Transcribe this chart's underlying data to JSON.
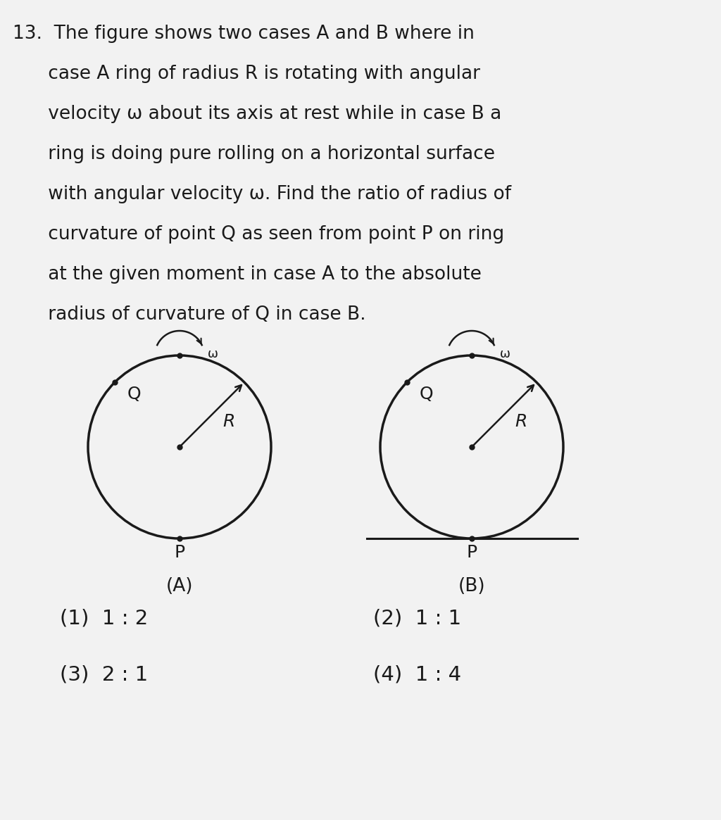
{
  "bg_color": "#f2f2f2",
  "text_color": "#1a1a1a",
  "question_lines": [
    "13.  The figure shows two cases A and B where in",
    "      case A ring of radius R is rotating with angular",
    "      velocity ω about its axis at rest while in case B a",
    "      ring is doing pure rolling on a horizontal surface",
    "      with angular velocity ω. Find the ratio of radius of",
    "      curvature of point Q as seen from point P on ring",
    "      at the given moment in case A to the absolute",
    "      radius of curvature of Q in case B."
  ],
  "options_col1": [
    "(1)  1 : 2",
    "(3)  2 : 1"
  ],
  "options_col2": [
    "(2)  1 : 1",
    "(4)  1 : 4"
  ],
  "label_A": "(A)",
  "label_B": "(B)"
}
